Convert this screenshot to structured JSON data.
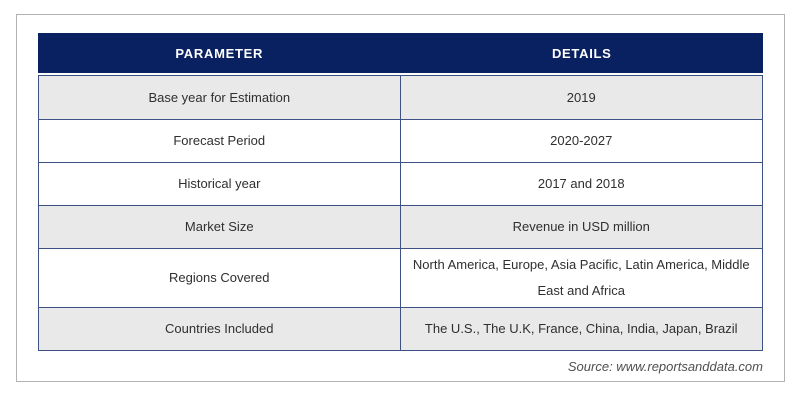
{
  "table": {
    "columns": [
      {
        "label": "PARAMETER"
      },
      {
        "label": "DETAILS"
      }
    ],
    "rows": [
      {
        "parameter": "Base year for Estimation",
        "details": "2019",
        "shaded": true
      },
      {
        "parameter": "Forecast Period",
        "details": "2020-2027",
        "shaded": false
      },
      {
        "parameter": "Historical year",
        "details": "2017 and 2018",
        "shaded": false
      },
      {
        "parameter": "Market Size",
        "details": "Revenue in USD million",
        "shaded": true
      },
      {
        "parameter": "Regions Covered",
        "details": "North America, Europe, Asia Pacific, Latin America, Middle East and Africa",
        "shaded": false
      },
      {
        "parameter": "Countries Included",
        "details": "The U.S., The  U.K, France, China, India, Japan, Brazil",
        "shaded": true
      }
    ]
  },
  "source": {
    "label": "Source: www.reportsanddata.com"
  },
  "colors": {
    "header_bg": "#0a2161",
    "header_text": "#ffffff",
    "row_shaded_bg": "#e9e9e9",
    "row_plain_bg": "#ffffff",
    "table_border": "#3d5184",
    "card_border": "#b3b3b3",
    "cell_text": "#2f2f2f",
    "source_text": "#4f4f4f"
  }
}
